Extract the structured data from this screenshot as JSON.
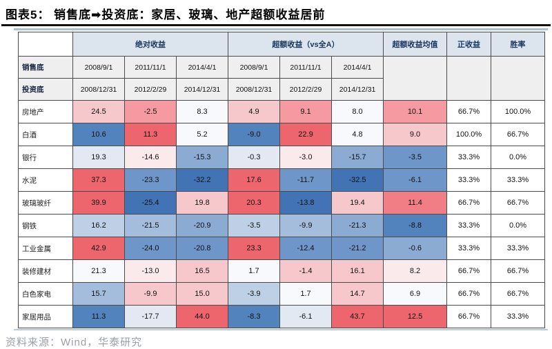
{
  "title": "图表5：  销售底➡投资底：家居、玻璃、地产超额收益居前",
  "source": "资料来源：Wind，华泰研究",
  "colors": {
    "r4": "#ee666d",
    "r3": "#f17e85",
    "r2": "#f49aa0",
    "r1": "#f7c8cb",
    "r0": "#fbeaeb",
    "w": "#f7f9fc",
    "b0": "#e2e9f3",
    "b1": "#bdd0e5",
    "b15": "#a4bddc",
    "b2": "#8cabd3",
    "b25": "#6e96c9",
    "b3": "#5383bd",
    "b35": "#4273b4",
    "header_bg": "#dce4ee",
    "subheader_bg": "#efefef",
    "header_text": "#17365d",
    "accent_rule": "#aebfce",
    "source_text": "#9aa0a6"
  },
  "table": {
    "group_headers": [
      "绝对收益",
      "超额收益（vs全A）",
      "超额收益均值",
      "正收益",
      "胜率"
    ],
    "sales_bottom_label": "销售底",
    "invest_bottom_label": "投资底",
    "sales_dates": [
      "2008/9/1",
      "2011/11/1",
      "2014/4/1"
    ],
    "invest_dates": [
      "2008/12/31",
      "2012/2/29",
      "2014/12/31"
    ],
    "rows": [
      {
        "label": "房地产",
        "values": [
          "24.5",
          "-2.5",
          "8.3",
          "4.9",
          "9.1",
          "8.0",
          "10.1"
        ],
        "shades": [
          "r1",
          "r2",
          "w",
          "r1",
          "r2",
          "w",
          "r2"
        ],
        "positive": "66.7%",
        "winrate": "100.0%"
      },
      {
        "label": "白酒",
        "values": [
          "10.6",
          "11.3",
          "5.2",
          "-9.0",
          "22.9",
          "4.8",
          "9.0"
        ],
        "shades": [
          "b3",
          "r4",
          "w",
          "b3",
          "r4",
          "w",
          "r1"
        ],
        "positive": "100.0%",
        "winrate": "66.7%"
      },
      {
        "label": "银行",
        "values": [
          "19.3",
          "-14.6",
          "-15.3",
          "-0.3",
          "-3.0",
          "-15.7",
          "-3.5"
        ],
        "shades": [
          "b0",
          "r0",
          "b2",
          "b0",
          "r0",
          "b2",
          "b25"
        ],
        "positive": "33.3%",
        "winrate": "0.0%"
      },
      {
        "label": "水泥",
        "values": [
          "37.3",
          "-23.3",
          "-32.2",
          "17.6",
          "-11.7",
          "-32.5",
          "-6.1"
        ],
        "shades": [
          "r4",
          "b25",
          "b35",
          "r4",
          "b25",
          "b35",
          "b25"
        ],
        "positive": "33.3%",
        "winrate": "33.3%"
      },
      {
        "label": "玻璃玻纤",
        "values": [
          "39.9",
          "-25.4",
          "19.8",
          "20.3",
          "-13.8",
          "19.4",
          "11.4"
        ],
        "shades": [
          "r4",
          "b35",
          "r1",
          "r4",
          "b35",
          "r1",
          "r3"
        ],
        "positive": "66.7%",
        "winrate": "66.7%"
      },
      {
        "label": "钢铁",
        "values": [
          "16.2",
          "-21.5",
          "-20.9",
          "-3.5",
          "-9.9",
          "-21.3",
          "-8.8"
        ],
        "shades": [
          "b1",
          "b15",
          "b2",
          "b1",
          "b15",
          "b2",
          "b3"
        ],
        "positive": "33.3%",
        "winrate": "0.0%"
      },
      {
        "label": "工业金属",
        "values": [
          "42.9",
          "-24.0",
          "-20.8",
          "23.3",
          "-12.4",
          "-21.2",
          "-0.6"
        ],
        "shades": [
          "r4",
          "b25",
          "b25",
          "r4",
          "b25",
          "b25",
          "b2"
        ],
        "positive": "33.3%",
        "winrate": "33.3%"
      },
      {
        "label": "装修建材",
        "values": [
          "21.3",
          "-13.0",
          "16.5",
          "1.7",
          "-1.4",
          "16.1",
          "8.2"
        ],
        "shades": [
          "w",
          "r0",
          "r1",
          "w",
          "r1",
          "r1",
          "r0"
        ],
        "positive": "66.7%",
        "winrate": "66.7%"
      },
      {
        "label": "白色家电",
        "values": [
          "15.7",
          "-9.9",
          "15.0",
          "-3.9",
          "1.7",
          "14.7",
          "6.9"
        ],
        "shades": [
          "b15",
          "r1",
          "r1",
          "b1",
          "w",
          "r1",
          "w"
        ],
        "positive": "66.7%",
        "winrate": "66.7%"
      },
      {
        "label": "家居用品",
        "values": [
          "11.3",
          "-17.7",
          "44.0",
          "-8.3",
          "-6.1",
          "43.7",
          "12.5"
        ],
        "shades": [
          "b3",
          "b0",
          "r4",
          "b3",
          "b0",
          "r4",
          "r4"
        ],
        "positive": "66.7%",
        "winrate": "33.3%"
      }
    ]
  }
}
